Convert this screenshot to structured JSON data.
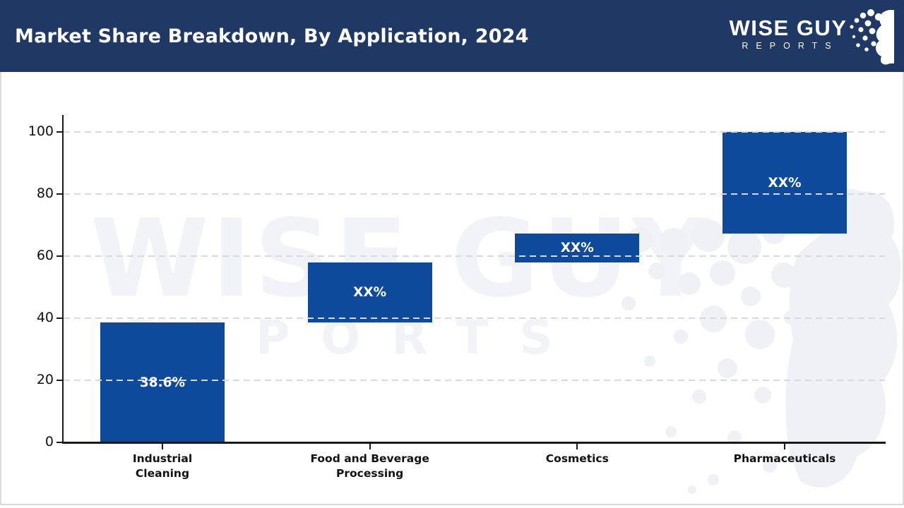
{
  "header": {
    "title": "Market Share Breakdown, By Application, 2024",
    "bg_color": "#1f3864",
    "brand": {
      "line1": "WISE GUY",
      "line2": "REPORTS"
    }
  },
  "watermark": {
    "line1": "WISE GUY",
    "line2": "REPORTS"
  },
  "chart_data": {
    "type": "bar",
    "subtype": "floating-waterfall",
    "title": "",
    "xlabel": "",
    "ylabel": "",
    "categories": [
      "Industrial\nCleaning",
      "Food and Beverage\nProcessing",
      "Cosmetics",
      "Pharmaceuticals"
    ],
    "series": [
      {
        "name": "Market Share",
        "segments": [
          {
            "start": 0,
            "end": 38.6,
            "label": "38.6%"
          },
          {
            "start": 38.6,
            "end": 58,
            "label": "XX%"
          },
          {
            "start": 58,
            "end": 67.2,
            "label": "XX%"
          },
          {
            "start": 67.2,
            "end": 100,
            "label": "XX%"
          }
        ]
      }
    ],
    "ylim": [
      0,
      100
    ],
    "yticks": [
      0,
      20,
      40,
      60,
      80,
      100
    ],
    "grid": "horizontal dashed, drawn above bars",
    "legend": "none",
    "bar_color": "#0d4a9c",
    "bar_label_color": "#ffffff",
    "grid_color": "#d9d9d9",
    "axis_color": "#1a1a1a"
  }
}
